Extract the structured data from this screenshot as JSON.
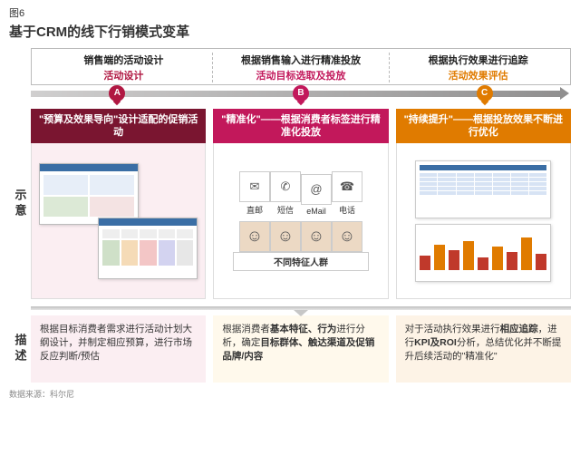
{
  "figure_label": "图6",
  "main_title": "基于CRM的线下行销模式变革",
  "source_line": "数据来源：科尔尼",
  "stages": [
    {
      "line1": "销售端的活动设计",
      "line2": "活动设计",
      "color": "#b01842",
      "marker": "A"
    },
    {
      "line1": "根据销售输入进行精准投放",
      "line2": "活动目标选取及投放",
      "color": "#c2185b",
      "marker": "B"
    },
    {
      "line1": "根据执行效果进行追踪",
      "line2": "活动效果评估",
      "color": "#e07b00",
      "marker": "C"
    }
  ],
  "row_labels": {
    "example": "示意",
    "desc": "描述"
  },
  "panels": [
    {
      "head": "\"预算及效果导向\"设计适配的促销活动",
      "head_bg": "#7a1530",
      "body_tint": "#fbeef2",
      "type": "dashboard-screens"
    },
    {
      "head": "\"精准化\"——根据消费者标签进行精准化投放",
      "head_bg": "#c2185b",
      "body_tint": "#ffffff",
      "type": "icons-and-faces",
      "icons": [
        {
          "glyph": "✉",
          "label": "直邮"
        },
        {
          "glyph": "✆",
          "label": "短信"
        },
        {
          "glyph": "@",
          "label": "eMail"
        },
        {
          "glyph": "☎",
          "label": "电话"
        }
      ],
      "faces_caption": "不同特征人群"
    },
    {
      "head": "\"持续提升\"——根据投放效果不断进行优化",
      "head_bg": "#e07b00",
      "body_tint": "#ffffff",
      "type": "report-charts"
    }
  ],
  "desc": [
    {
      "bg": "#fbeef2",
      "html": "根据目标消费者需求进行活动计划大纲设计，并制定相应预算，进行市场反应判断/预估"
    },
    {
      "bg": "#fff9ec",
      "html": "根据消费者<b>基本特征、行为</b>进行分析，确定<b>目标群体、触达渠道及促销品牌/内容</b>"
    },
    {
      "bg": "#fdf3e6",
      "html": "对于活动执行效果进行<b>相应追踪</b>，进行<b>KPI及ROI</b>分析，总结优化并不断提升后续活动的\"精准化\""
    }
  ],
  "marker_positions_pct": [
    16,
    50,
    84
  ]
}
